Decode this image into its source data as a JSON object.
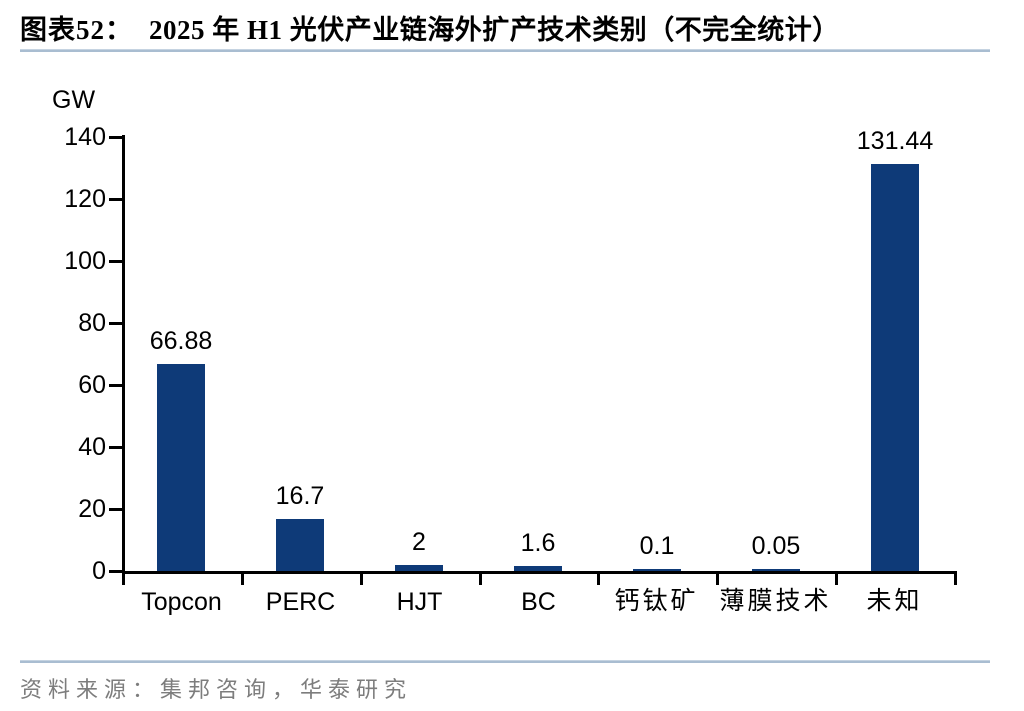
{
  "page": {
    "exhibit_label": "图表52：",
    "title": "2025 年 H1 光伏产业链海外扩产技术类别（不完全统计）",
    "source": "资料来源：集邦咨询，华泰研究"
  },
  "colors": {
    "bar": "#0e3a78",
    "divider": "#a9bdd1",
    "divider_light": "#d9e2ec",
    "axis": "#000000",
    "source_text": "#7d7d7d"
  },
  "chart_data": {
    "type": "bar",
    "title": "2025 年 H1 光伏产业链海外扩产技术类别（不完全统计）",
    "unit_label": "GW",
    "xlabel": "",
    "ylabel": "GW",
    "categories": [
      "Topcon",
      "PERC",
      "HJT",
      "BC",
      "钙钛矿",
      "薄膜技术",
      "未知"
    ],
    "values": [
      66.88,
      16.7,
      2,
      1.6,
      0.1,
      0.05,
      131.44
    ],
    "value_labels": [
      "66.88",
      "16.7",
      "2",
      "1.6",
      "0.1",
      "0.05",
      "131.44"
    ],
    "category_is_cjk": [
      false,
      false,
      false,
      false,
      true,
      true,
      true
    ],
    "ylim": [
      0,
      140
    ],
    "yticks": [
      0,
      20,
      40,
      60,
      80,
      100,
      120,
      140
    ],
    "grid": false,
    "legend": false,
    "bar_color": "#0e3a78"
  }
}
